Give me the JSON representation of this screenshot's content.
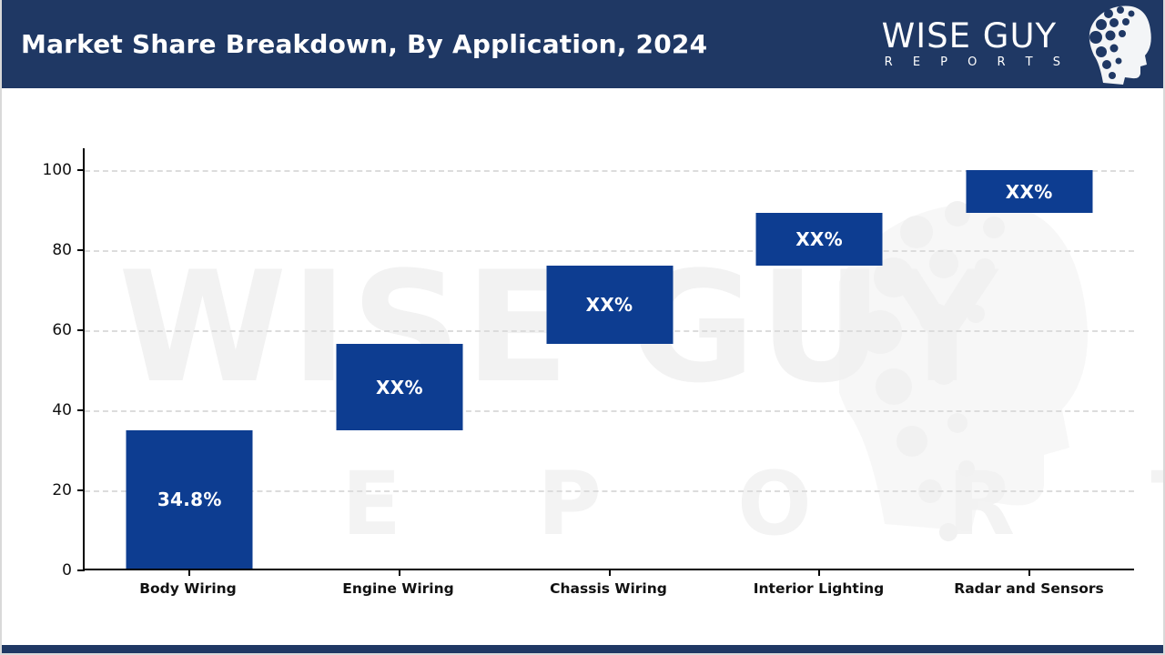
{
  "header": {
    "title": "Market Share Breakdown, By Application, 2024",
    "logo": {
      "line1": "WISE GUY",
      "line2": "R E P O R T S",
      "head_icon": "dotted-head-profile"
    }
  },
  "watermark": {
    "line1": "WISE GUY",
    "line2": "R E P O R T S"
  },
  "colors": {
    "header_navy": "#1f3864",
    "bar_blue": "#0d3d91",
    "bar_label_white": "#ffffff",
    "gridline_gray": "#dcdcdc",
    "axis_black": "#000000",
    "watermark_gray": "#f2f2f2"
  },
  "chart_data": {
    "type": "bar",
    "subtype": "waterfall",
    "title": "Market Share Breakdown, By Application, 2024",
    "xlabel": "",
    "ylabel": "",
    "categories": [
      "Body Wiring",
      "Engine Wiring",
      "Chassis Wiring",
      "Interior Lighting",
      "Radar and Sensors"
    ],
    "bars": [
      {
        "category": "Body Wiring",
        "label": "34.8%",
        "start": 0,
        "end": 34.8
      },
      {
        "category": "Engine Wiring",
        "label": "XX%",
        "start": 34.8,
        "end": 56.3
      },
      {
        "category": "Chassis Wiring",
        "label": "XX%",
        "start": 56.3,
        "end": 76.0
      },
      {
        "category": "Interior Lighting",
        "label": "XX%",
        "start": 76.0,
        "end": 89.2
      },
      {
        "category": "Radar and Sensors",
        "label": "XX%",
        "start": 89.2,
        "end": 100.0
      }
    ],
    "y_ticks": [
      0,
      20,
      40,
      60,
      80,
      100
    ],
    "ylim": [
      0,
      105.5
    ],
    "grid": "horizontal dashed",
    "legend": "none"
  }
}
